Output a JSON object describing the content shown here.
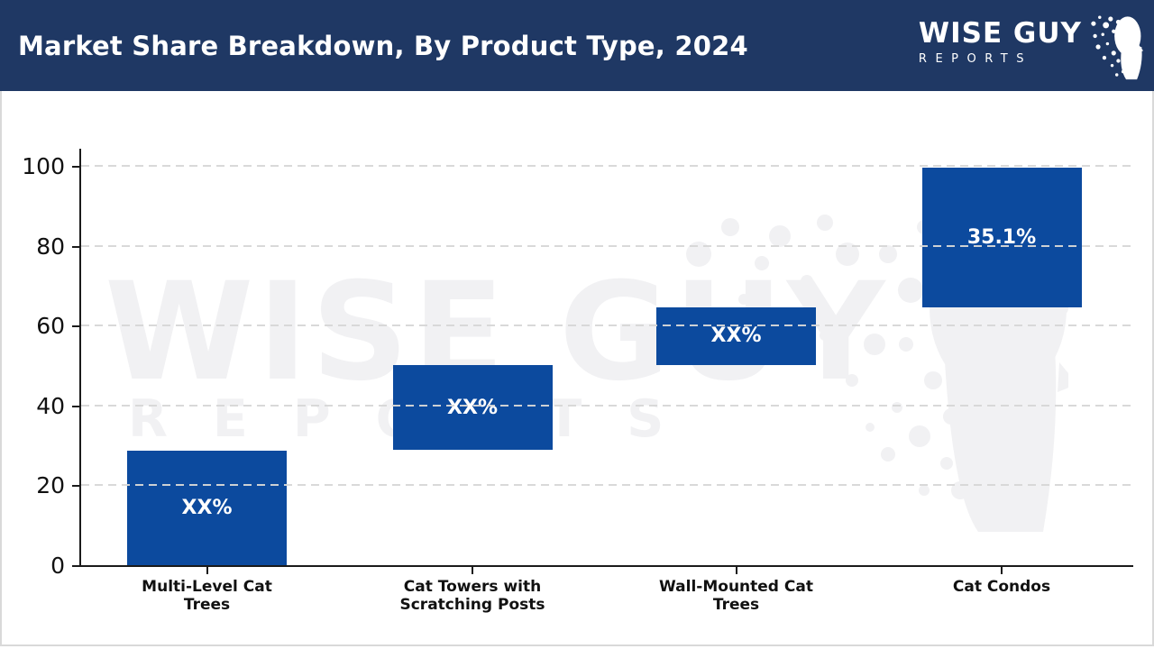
{
  "header": {
    "title": "Market Share Breakdown, By Product Type, 2024",
    "logo": {
      "line1": "WISE GUY",
      "line2": "REPORTS"
    }
  },
  "watermark": {
    "line1": "WISE GUY",
    "line2": "REPORTS"
  },
  "colors": {
    "header_bg": "#1f3864",
    "bar": "#0c4a9e",
    "bar_label": "#ffffff",
    "grid": "#d7d7d7",
    "axis": "#1a1a1a",
    "watermark": "#f1f1f3",
    "page_border": "#d9d9d9"
  },
  "chart_data": {
    "type": "bar",
    "variant": "floating-waterfall",
    "title": "Market Share Breakdown, By Product Type, 2024",
    "categories": [
      [
        "Multi-Level Cat",
        "Trees"
      ],
      [
        "Cat Towers with",
        "Scratching Posts"
      ],
      [
        "Wall-Mounted Cat",
        "Trees"
      ],
      [
        "Cat Condos"
      ]
    ],
    "segments": [
      {
        "start": 0,
        "end": 28.8,
        "label": "XX%"
      },
      {
        "start": 28.8,
        "end": 50.2,
        "label": "XX%"
      },
      {
        "start": 50.2,
        "end": 64.6,
        "label": "XX%"
      },
      {
        "start": 64.6,
        "end": 99.7,
        "label": "35.1%"
      }
    ],
    "ylim": [
      0,
      103
    ],
    "yticks": [
      0,
      20,
      40,
      60,
      80,
      100
    ],
    "grid": "dashed horizontal, drawn over bars",
    "legend": "none",
    "unit": "%"
  }
}
